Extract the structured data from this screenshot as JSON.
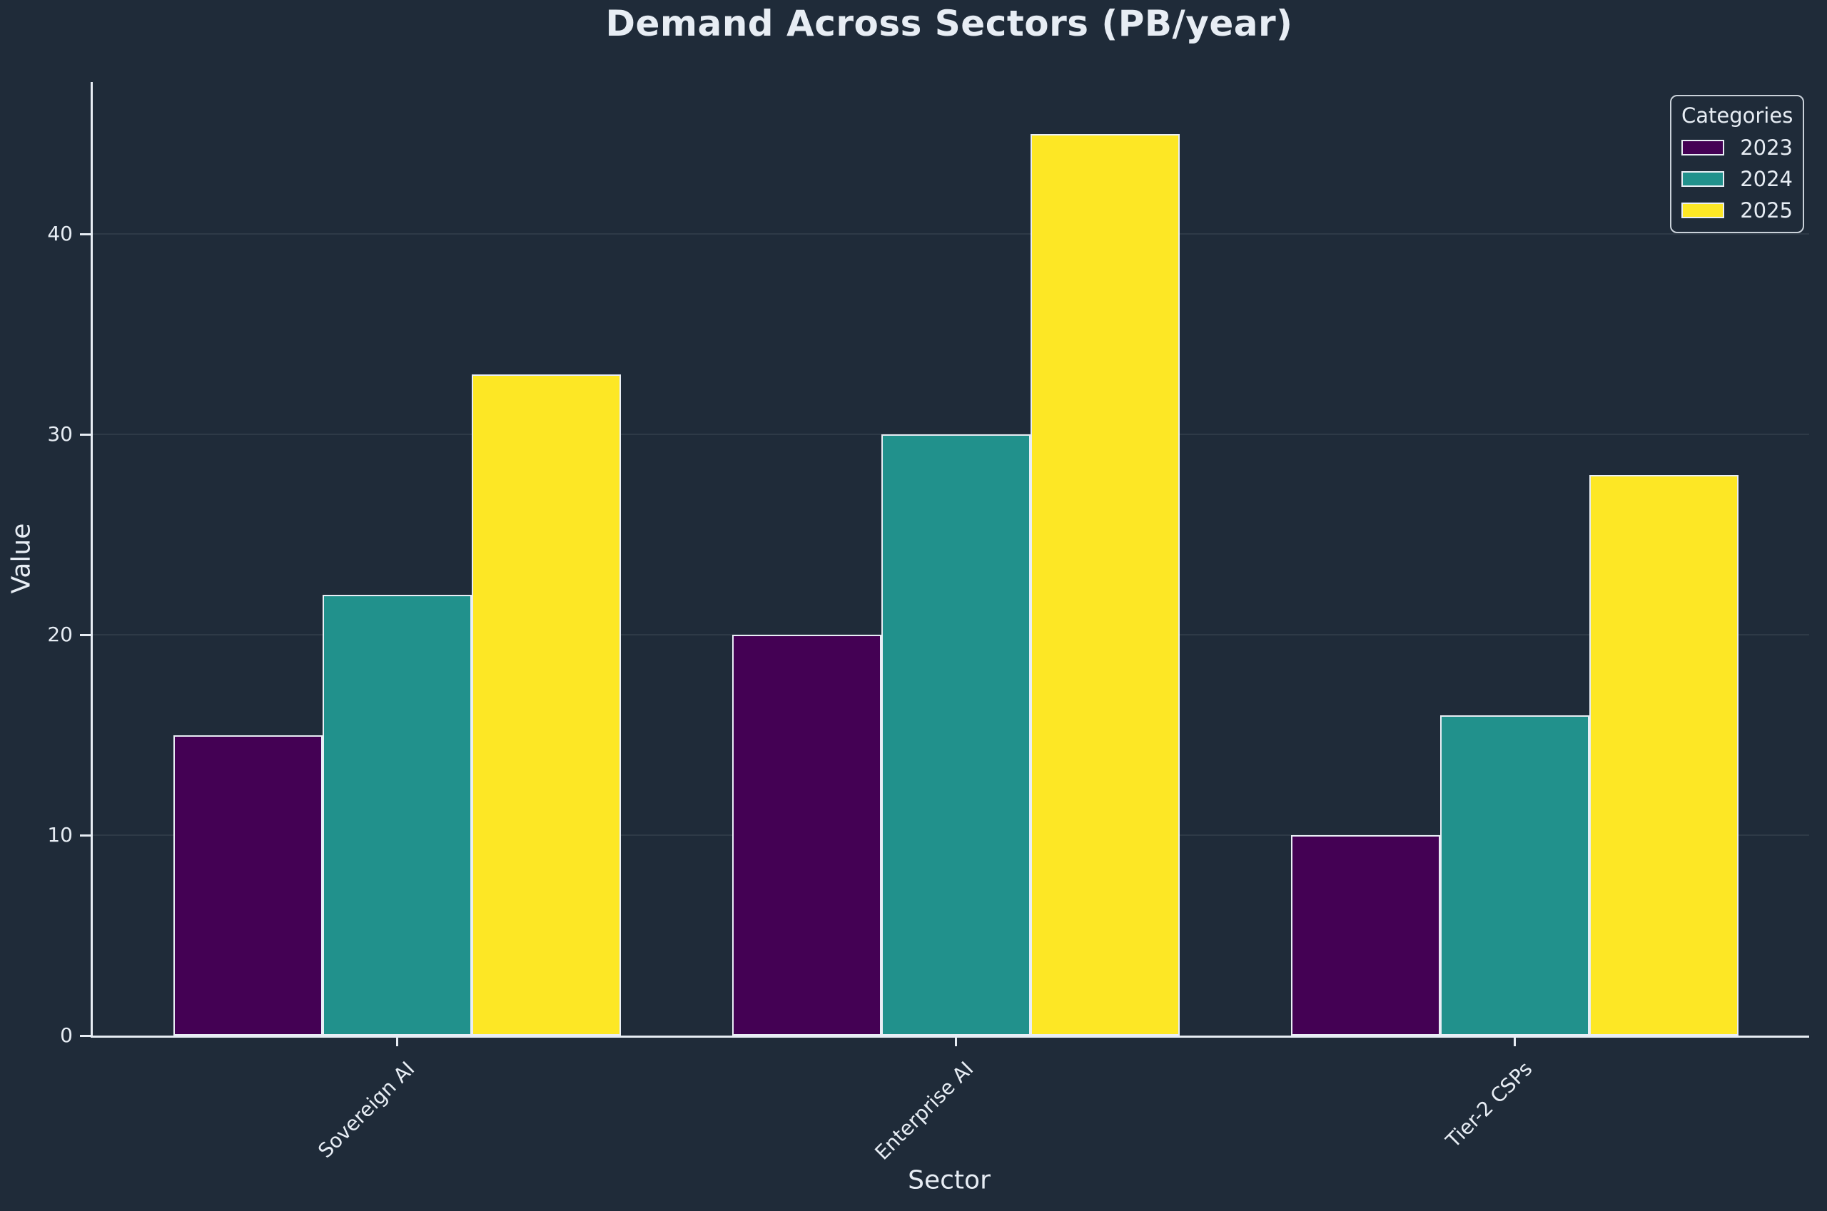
{
  "style": {
    "background": "#1f2b39",
    "text": "#e7edf4",
    "axis": "#e7edf4",
    "bar_edge": "#e9eef5",
    "legend_border": "#c9d1d9"
  },
  "chart_data": {
    "type": "bar",
    "title": "Demand Across Sectors (PB/year)",
    "xlabel": "Sector",
    "ylabel": "Value",
    "categories": [
      "Sovereign AI",
      "Enterprise AI",
      "Tier-2 CSPs"
    ],
    "series": [
      {
        "name": "2023",
        "color": "#440154",
        "values": [
          15,
          20,
          10
        ]
      },
      {
        "name": "2024",
        "color": "#21918c",
        "values": [
          22,
          30,
          16
        ]
      },
      {
        "name": "2025",
        "color": "#fde725",
        "values": [
          33,
          45,
          28
        ]
      }
    ],
    "legend": {
      "title": "Categories",
      "position": "upper right"
    },
    "ylim": [
      0,
      47.6
    ],
    "yticks": [
      0,
      10,
      20,
      30,
      40
    ],
    "grid": true,
    "xtick_rotation_deg": 45
  }
}
